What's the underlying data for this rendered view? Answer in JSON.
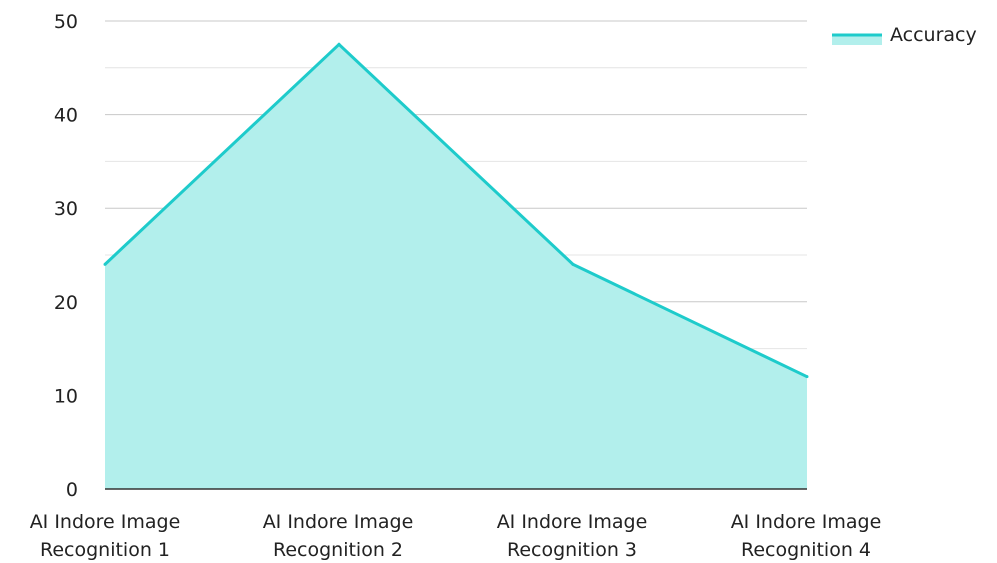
{
  "chart_data": {
    "type": "area",
    "categories": [
      [
        "AI Indore Image",
        "Recognition 1"
      ],
      [
        "AI Indore Image",
        "Recognition 2"
      ],
      [
        "AI Indore Image",
        "Recognition 3"
      ],
      [
        "AI Indore Image",
        "Recognition 4"
      ]
    ],
    "series": [
      {
        "name": "Accuracy",
        "values": [
          24,
          47.5,
          24,
          12
        ],
        "color": "#1ecbcb",
        "fill": "#b2efec"
      }
    ],
    "yticks": [
      "0",
      "10",
      "20",
      "30",
      "40",
      "50"
    ],
    "ylim": [
      0,
      50
    ],
    "grid": true,
    "gridline_color": "#c8c8c8",
    "minor_gridline_color": "#e4e4e4",
    "legend_position": "top-right",
    "title": "",
    "xlabel": "",
    "ylabel": ""
  }
}
